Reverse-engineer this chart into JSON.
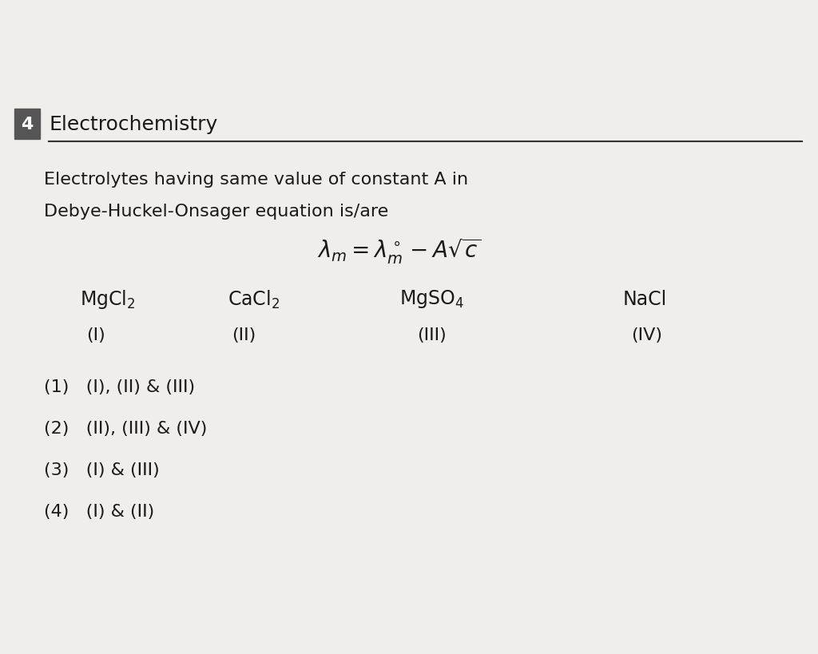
{
  "background_color": "#f0eeeb",
  "chapter_number": "4",
  "chapter_title": "Electrochemistry",
  "question_text_line1": "Electrolytes having same value of constant A in",
  "question_text_line2": "Debye-Huckel-Onsager equation is/are",
  "formula": "$\\lambda_m = \\lambda_m^\\circ - A\\sqrt{c}$",
  "compounds": [
    "MgCl$_2$",
    "CaCl$_2$",
    "MgSO$_4$",
    "NaCl"
  ],
  "compound_labels": [
    "(I)",
    "(II)",
    "(III)",
    "(IV)"
  ],
  "options": [
    "(1)   (I), (II) & (III)",
    "(2)   (II), (III) & (IV)",
    "(3)   (I) & (III)",
    "(4)   (I) & (II)"
  ],
  "text_color": "#1a1a1a",
  "line_color": "#333333",
  "title_fontsize": 18,
  "body_fontsize": 16,
  "compound_fontsize": 17,
  "option_fontsize": 16
}
